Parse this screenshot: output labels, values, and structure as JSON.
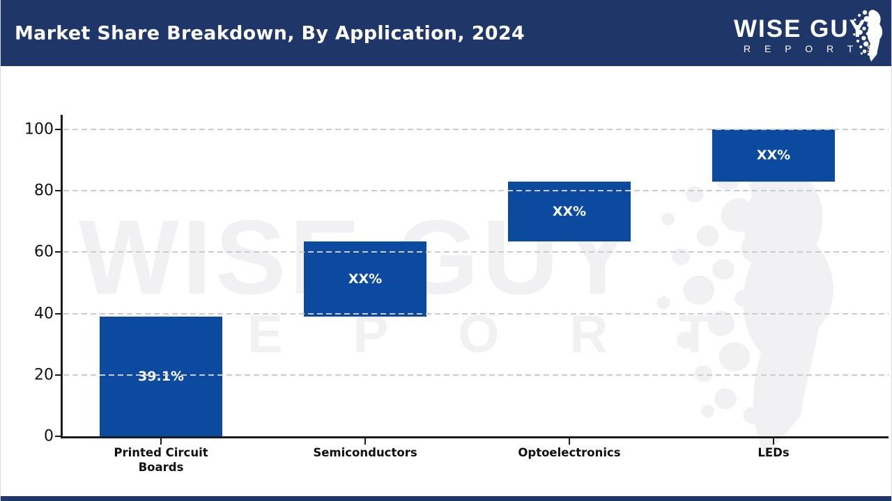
{
  "header": {
    "title": "Market Share Breakdown, By Application, 2024",
    "logo": {
      "line1": "WISE GUY",
      "line2": "R E P O R T S"
    }
  },
  "watermark": {
    "line1": "WISE GUY",
    "line2": "R E P O R T S"
  },
  "colors": {
    "header_bg": "#1F3768",
    "footer_bg": "#1F3768",
    "bar_blue": "#0B4A9F",
    "watermark_gray": "#F1F1F3",
    "gridline": "#CCCCCC",
    "axis": "#1A1A1A",
    "title_text": "#FFFFFF",
    "bar_label_text": "#FFFFFF"
  },
  "chart_data": {
    "type": "bar",
    "subtype": "waterfall",
    "title": "Market Share Breakdown, By Application, 2024",
    "categories": [
      "Printed Circuit Boards",
      "Semiconductors",
      "Optoelectronics",
      "LEDs"
    ],
    "segments": [
      {
        "category": "Printed Circuit Boards",
        "start": 0,
        "end": 39.1,
        "label": "39.1%"
      },
      {
        "category": "Semiconductors",
        "start": 39.1,
        "end": 63.5,
        "label": "XX%"
      },
      {
        "category": "Optoelectronics",
        "start": 63.5,
        "end": 83,
        "label": "XX%"
      },
      {
        "category": "LEDs",
        "start": 83,
        "end": 100,
        "label": "XX%"
      }
    ],
    "yticks": [
      0,
      20,
      40,
      60,
      80,
      100
    ],
    "ylim": [
      0,
      105
    ],
    "xlabel": "",
    "ylabel": "",
    "grid": "horizontal-dashed",
    "legend": "none"
  }
}
